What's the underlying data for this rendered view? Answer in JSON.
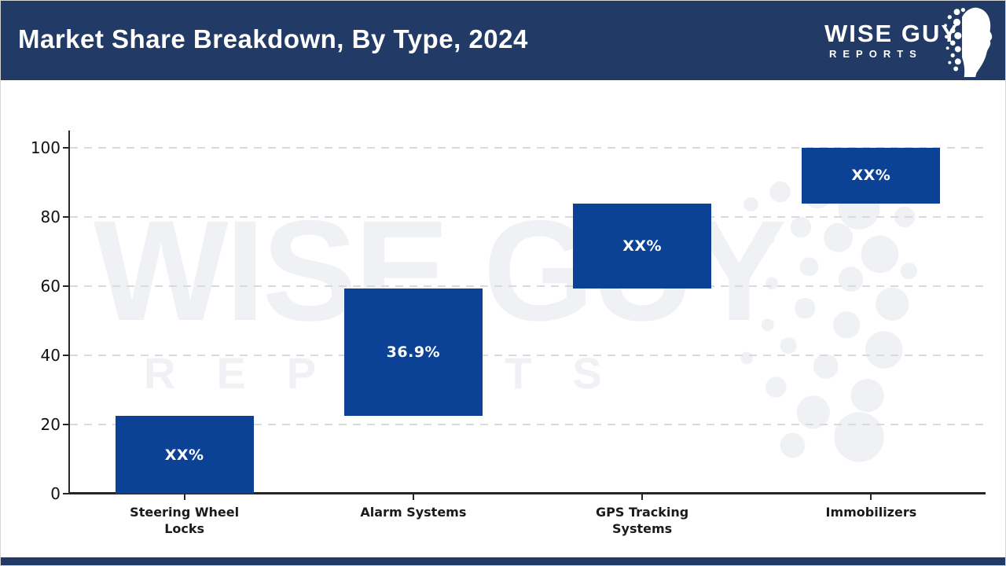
{
  "header": {
    "title": "Market Share Breakdown, By Type, 2024",
    "background_color": "#213A66",
    "logo": {
      "line1": "WISE GUY",
      "line2": "REPORTS"
    }
  },
  "watermark": {
    "line1": "WISE GUY",
    "line2": "REPORTS"
  },
  "footer": {
    "background_color": "#213A66"
  },
  "chart_data": {
    "type": "bar",
    "subtype": "floating-waterfall",
    "title": "Market Share Breakdown, By Type, 2024",
    "categories": [
      "Steering Wheel\nLocks",
      "Alarm Systems",
      "GPS Tracking\nSystems",
      "Immobilizers"
    ],
    "bars": [
      {
        "category": "Steering Wheel Locks",
        "start": 0,
        "end": 22.4,
        "value": 22.4,
        "label": "XX%"
      },
      {
        "category": "Alarm Systems",
        "start": 22.4,
        "end": 59.3,
        "value": 36.9,
        "label": "36.9%"
      },
      {
        "category": "GPS Tracking Systems",
        "start": 59.3,
        "end": 83.9,
        "value": 24.6,
        "label": "XX%"
      },
      {
        "category": "Immobilizers",
        "start": 83.9,
        "end": 100,
        "value": 16.1,
        "label": "XX%"
      }
    ],
    "xlabel": "",
    "ylabel": "",
    "ylim": [
      0,
      100
    ],
    "yticks": [
      0,
      20,
      40,
      60,
      80,
      100
    ],
    "grid": {
      "visible": true,
      "style": "dashed",
      "color": "#dadada"
    },
    "legend": "none",
    "bar_color": "#0B4295",
    "bar_label_color": "#ffffff",
    "axis_color": "#262626"
  }
}
